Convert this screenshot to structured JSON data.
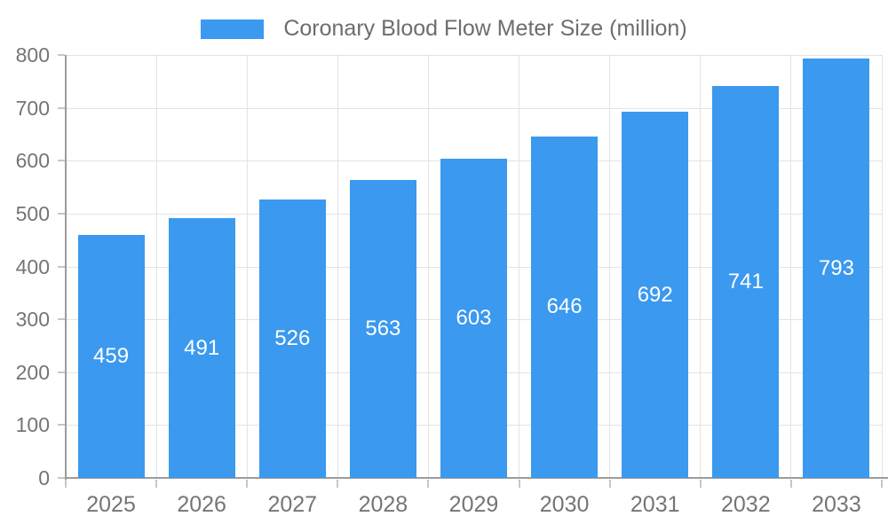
{
  "chart_data": {
    "type": "bar",
    "title": "Coronary Blood Flow Meter Size (million)",
    "legend": [
      "Coronary Blood Flow Meter Size (million)"
    ],
    "legend_position": "top-center",
    "categories": [
      "2025",
      "2026",
      "2027",
      "2028",
      "2029",
      "2030",
      "2031",
      "2032",
      "2033"
    ],
    "values": [
      459,
      491,
      526,
      563,
      603,
      646,
      692,
      741,
      793
    ],
    "yticks": [
      0,
      100,
      200,
      300,
      400,
      500,
      600,
      700,
      800
    ],
    "ylim": [
      0,
      800
    ],
    "xlabel": "",
    "ylabel": "",
    "grid": true,
    "value_label_position": "inside-center",
    "colors": {
      "bar": "#3B99EF",
      "value_label": "#FFFFFF",
      "axis_label": "#757575",
      "legend_text": "#6D6D6D",
      "axis_line": "#9C9C9C",
      "grid_line": "#E3E3E3",
      "tick": "#C6C6C6",
      "background": "#FFFFFF"
    }
  }
}
